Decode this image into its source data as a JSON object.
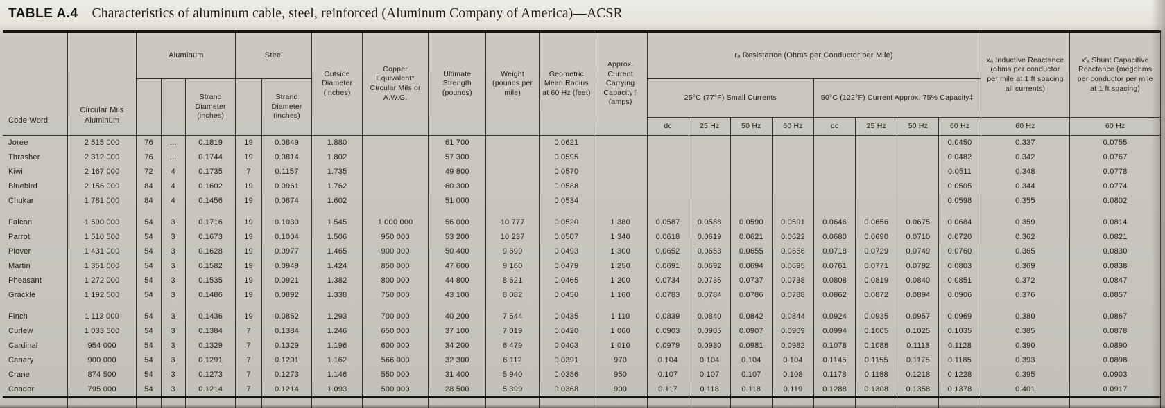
{
  "page": {
    "title_label": "TABLE A.4",
    "title_text": "Characteristics of aluminum cable, steel, reinforced (Aluminum Company of America)—ACSR"
  },
  "header": {
    "code_word": "Code Word",
    "circular_mils": "Circular Mils Aluminum",
    "aluminum_group": "Aluminum",
    "steel_group": "Steel",
    "al_strand_diameter": "Strand Diameter (inches)",
    "st_strand_diameter": "Strand Diameter (inches)",
    "outside_diameter": "Outside Diameter (inches)",
    "copper_equivalent": "Copper Equivalent* Circular Mils or A.W.G.",
    "ultimate_strength": "Ultimate Strength (pounds)",
    "weight": "Weight (pounds per mile)",
    "gmr": "Geometric Mean Radius at 60 Hz (feet)",
    "current_capacity": "Approx. Current Carrying Capacity† (amps)",
    "resistance_group": "rₐ Resistance (Ohms per Conductor per Mile)",
    "resistance_25c": "25°C (77°F) Small Currents",
    "resistance_50c": "50°C (122°F) Current Approx. 75% Capacity‡",
    "freq_cols": [
      "dc",
      "25 Hz",
      "50 Hz",
      "60 Hz",
      "dc",
      "25 Hz",
      "50 Hz",
      "60 Hz"
    ],
    "xa_header": "xₐ Inductive Reactance (ohms per conductor per mile at 1 ft spacing all currents)",
    "xa_prime_header": "x′ₐ Shunt Capacitive Reactance (megohms per conductor per mile at 1 ft spacing)",
    "xa_freq": "60 Hz",
    "xa_prime_freq": "60 Hz"
  },
  "table": {
    "groups": [
      [
        [
          "Joree",
          "2 515 000",
          "76",
          "...",
          "0.1819",
          "19",
          "0.0849",
          "1.880",
          "",
          "61 700",
          "",
          "0.0621",
          "",
          "",
          "",
          "",
          "",
          "",
          "",
          "",
          "0.0450",
          "0.337",
          "0.0755"
        ],
        [
          "Thrasher",
          "2 312 000",
          "76",
          "...",
          "0.1744",
          "19",
          "0.0814",
          "1.802",
          "",
          "57 300",
          "",
          "0.0595",
          "",
          "",
          "",
          "",
          "",
          "",
          "",
          "",
          "0.0482",
          "0.342",
          "0.0767"
        ],
        [
          "Kiwi",
          "2 167 000",
          "72",
          "4",
          "0.1735",
          "7",
          "0.1157",
          "1.735",
          "",
          "49 800",
          "",
          "0.0570",
          "",
          "",
          "",
          "",
          "",
          "",
          "",
          "",
          "0.0511",
          "0.348",
          "0.0778"
        ],
        [
          "Bluebird",
          "2 156 000",
          "84",
          "4",
          "0.1602",
          "19",
          "0.0961",
          "1.762",
          "",
          "60 300",
          "",
          "0.0588",
          "",
          "",
          "",
          "",
          "",
          "",
          "",
          "",
          "0.0505",
          "0.344",
          "0.0774"
        ],
        [
          "Chukar",
          "1 781 000",
          "84",
          "4",
          "0.1456",
          "19",
          "0.0874",
          "1.602",
          "",
          "51 000",
          "",
          "0.0534",
          "",
          "",
          "",
          "",
          "",
          "",
          "",
          "",
          "0.0598",
          "0.355",
          "0.0802"
        ]
      ],
      [
        [
          "Falcon",
          "1 590 000",
          "54",
          "3",
          "0.1716",
          "19",
          "0.1030",
          "1.545",
          "1 000 000",
          "56 000",
          "10 777",
          "0.0520",
          "1 380",
          "0.0587",
          "0.0588",
          "0.0590",
          "0.0591",
          "0.0646",
          "0.0656",
          "0.0675",
          "0.0684",
          "0.359",
          "0.0814"
        ],
        [
          "Parrot",
          "1 510 500",
          "54",
          "3",
          "0.1673",
          "19",
          "0.1004",
          "1.506",
          "950 000",
          "53 200",
          "10 237",
          "0.0507",
          "1 340",
          "0.0618",
          "0.0619",
          "0.0621",
          "0.0622",
          "0.0680",
          "0.0690",
          "0.0710",
          "0.0720",
          "0.362",
          "0.0821"
        ],
        [
          "Plover",
          "1 431 000",
          "54",
          "3",
          "0.1628",
          "19",
          "0.0977",
          "1.465",
          "900 000",
          "50 400",
          "9 699",
          "0.0493",
          "1 300",
          "0.0652",
          "0.0653",
          "0.0655",
          "0.0656",
          "0.0718",
          "0.0729",
          "0.0749",
          "0.0760",
          "0.365",
          "0.0830"
        ],
        [
          "Martin",
          "1 351 000",
          "54",
          "3",
          "0.1582",
          "19",
          "0.0949",
          "1.424",
          "850 000",
          "47 600",
          "9 160",
          "0.0479",
          "1 250",
          "0.0691",
          "0.0692",
          "0.0694",
          "0.0695",
          "0.0761",
          "0.0771",
          "0.0792",
          "0.0803",
          "0.369",
          "0.0838"
        ],
        [
          "Pheasant",
          "1 272 000",
          "54",
          "3",
          "0.1535",
          "19",
          "0.0921",
          "1.382",
          "800 000",
          "44 800",
          "8 621",
          "0.0465",
          "1 200",
          "0.0734",
          "0.0735",
          "0.0737",
          "0.0738",
          "0.0808",
          "0.0819",
          "0.0840",
          "0.0851",
          "0.372",
          "0.0847"
        ],
        [
          "Grackle",
          "1 192 500",
          "54",
          "3",
          "0.1486",
          "19",
          "0.0892",
          "1.338",
          "750 000",
          "43 100",
          "8 082",
          "0.0450",
          "1 160",
          "0.0783",
          "0.0784",
          "0.0786",
          "0.0788",
          "0.0862",
          "0.0872",
          "0.0894",
          "0.0906",
          "0.376",
          "0.0857"
        ]
      ],
      [
        [
          "Finch",
          "1 113 000",
          "54",
          "3",
          "0.1436",
          "19",
          "0.0862",
          "1.293",
          "700 000",
          "40 200",
          "7 544",
          "0.0435",
          "1 110",
          "0.0839",
          "0.0840",
          "0.0842",
          "0.0844",
          "0.0924",
          "0.0935",
          "0.0957",
          "0.0969",
          "0.380",
          "0.0867"
        ],
        [
          "Curlew",
          "1 033 500",
          "54",
          "3",
          "0.1384",
          "7",
          "0.1384",
          "1.246",
          "650 000",
          "37 100",
          "7 019",
          "0.0420",
          "1 060",
          "0.0903",
          "0.0905",
          "0.0907",
          "0.0909",
          "0.0994",
          "0.1005",
          "0.1025",
          "0.1035",
          "0.385",
          "0.0878"
        ],
        [
          "Cardinal",
          "954 000",
          "54",
          "3",
          "0.1329",
          "7",
          "0.1329",
          "1.196",
          "600 000",
          "34 200",
          "6 479",
          "0.0403",
          "1 010",
          "0.0979",
          "0.0980",
          "0.0981",
          "0.0982",
          "0.1078",
          "0.1088",
          "0.1118",
          "0.1128",
          "0.390",
          "0.0890"
        ],
        [
          "Canary",
          "900 000",
          "54",
          "3",
          "0.1291",
          "7",
          "0.1291",
          "1.162",
          "566 000",
          "32 300",
          "6 112",
          "0.0391",
          "970",
          "0.104",
          "0.104",
          "0.104",
          "0.104",
          "0.1145",
          "0.1155",
          "0.1175",
          "0.1185",
          "0.393",
          "0.0898"
        ],
        [
          "Crane",
          "874 500",
          "54",
          "3",
          "0.1273",
          "7",
          "0.1273",
          "1.146",
          "550 000",
          "31 400",
          "5 940",
          "0.0386",
          "950",
          "0.107",
          "0.107",
          "0.107",
          "0.108",
          "0.1178",
          "0.1188",
          "0.1218",
          "0.1228",
          "0.395",
          "0.0903"
        ],
        [
          "Condor",
          "795 000",
          "54",
          "3",
          "0.1214",
          "7",
          "0.1214",
          "1.093",
          "500 000",
          "28 500",
          "5 399",
          "0.0368",
          "900",
          "0.117",
          "0.118",
          "0.118",
          "0.119",
          "0.1288",
          "0.1308",
          "0.1358",
          "0.1378",
          "0.401",
          "0.0917"
        ]
      ]
    ]
  }
}
